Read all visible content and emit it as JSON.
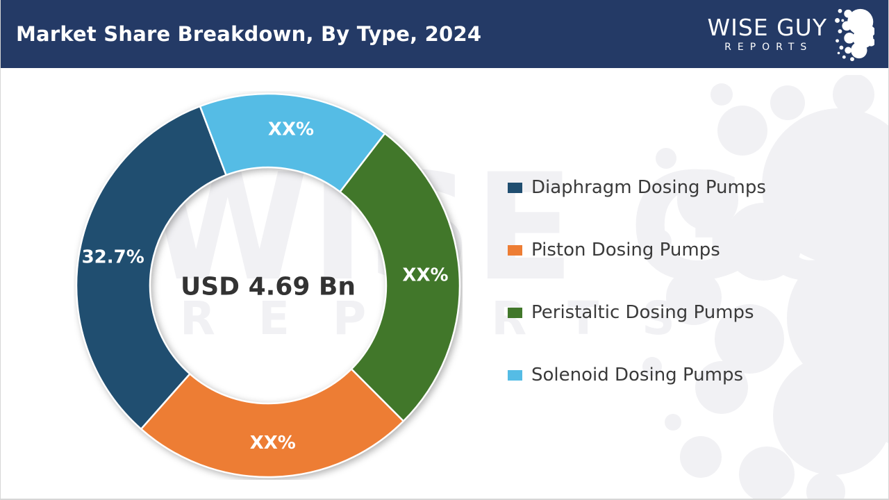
{
  "header": {
    "title": "Market Share Breakdown, By Type, 2024"
  },
  "logo": {
    "line1": "WISE GUY",
    "line2": "REPORTS"
  },
  "watermark": {
    "line1": "WISE GUY",
    "line2": "REPORTS"
  },
  "colors": {
    "header_bg": "#243A66",
    "page_bg": "#ffffff",
    "page_border": "#d6d6d6",
    "watermark": "#f1f1f4",
    "center_text": "#333333",
    "legend_text": "#3a3a3a",
    "seg_label": "#ffffff"
  },
  "chart_data": {
    "type": "pie",
    "subtype": "donut",
    "title": "Market Share Breakdown, By Type, 2024",
    "center_label": "USD 4.69 Bn",
    "start_angle_deg": 110.8,
    "direction": "counterclockwise",
    "inner_radius_ratio": 0.615,
    "legend_position": "right",
    "segments": [
      {
        "name": "Diaphragm Dosing Pumps",
        "value_pct": 32.7,
        "display_label": "32.7%",
        "color": "#204E70"
      },
      {
        "name": "Piston Dosing Pumps",
        "value_pct": 24.0,
        "display_label": "XX%",
        "color": "#ED7D34"
      },
      {
        "name": "Peristaltic Dosing Pumps",
        "value_pct": 27.1,
        "display_label": "XX%",
        "color": "#41772A"
      },
      {
        "name": "Solenoid Dosing Pumps",
        "value_pct": 16.2,
        "display_label": "XX%",
        "color": "#55BCE5"
      }
    ]
  }
}
